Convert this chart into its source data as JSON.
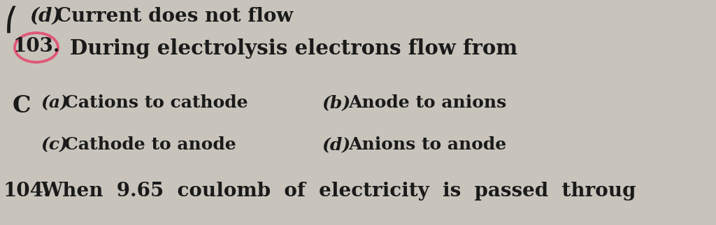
{
  "bg_color": "#c8c4bc",
  "text_color": "#1a1a1a",
  "circle_color": "#e05878",
  "line1_bracket": "⎛",
  "line1_d": "(d)",
  "line1_rest": "Current does not flow",
  "line2_num": "103.",
  "line2_rest": "During electrolysis electrons flow from",
  "answer": "C",
  "opt_a_label": "(a)",
  "opt_a_text": "Cations to cathode",
  "opt_b_label": "(b)",
  "opt_b_text": "Anode to anions",
  "opt_c_label": "(c)",
  "opt_c_text": "Cathode to anode",
  "opt_d_label": "(d)",
  "opt_d_text": "Anions to anode",
  "line5_num": "104.",
  "line5_rest": "When  9.65  coulomb  of  electricity  is  passed  throug",
  "font_size": 20,
  "font_size_small": 18
}
